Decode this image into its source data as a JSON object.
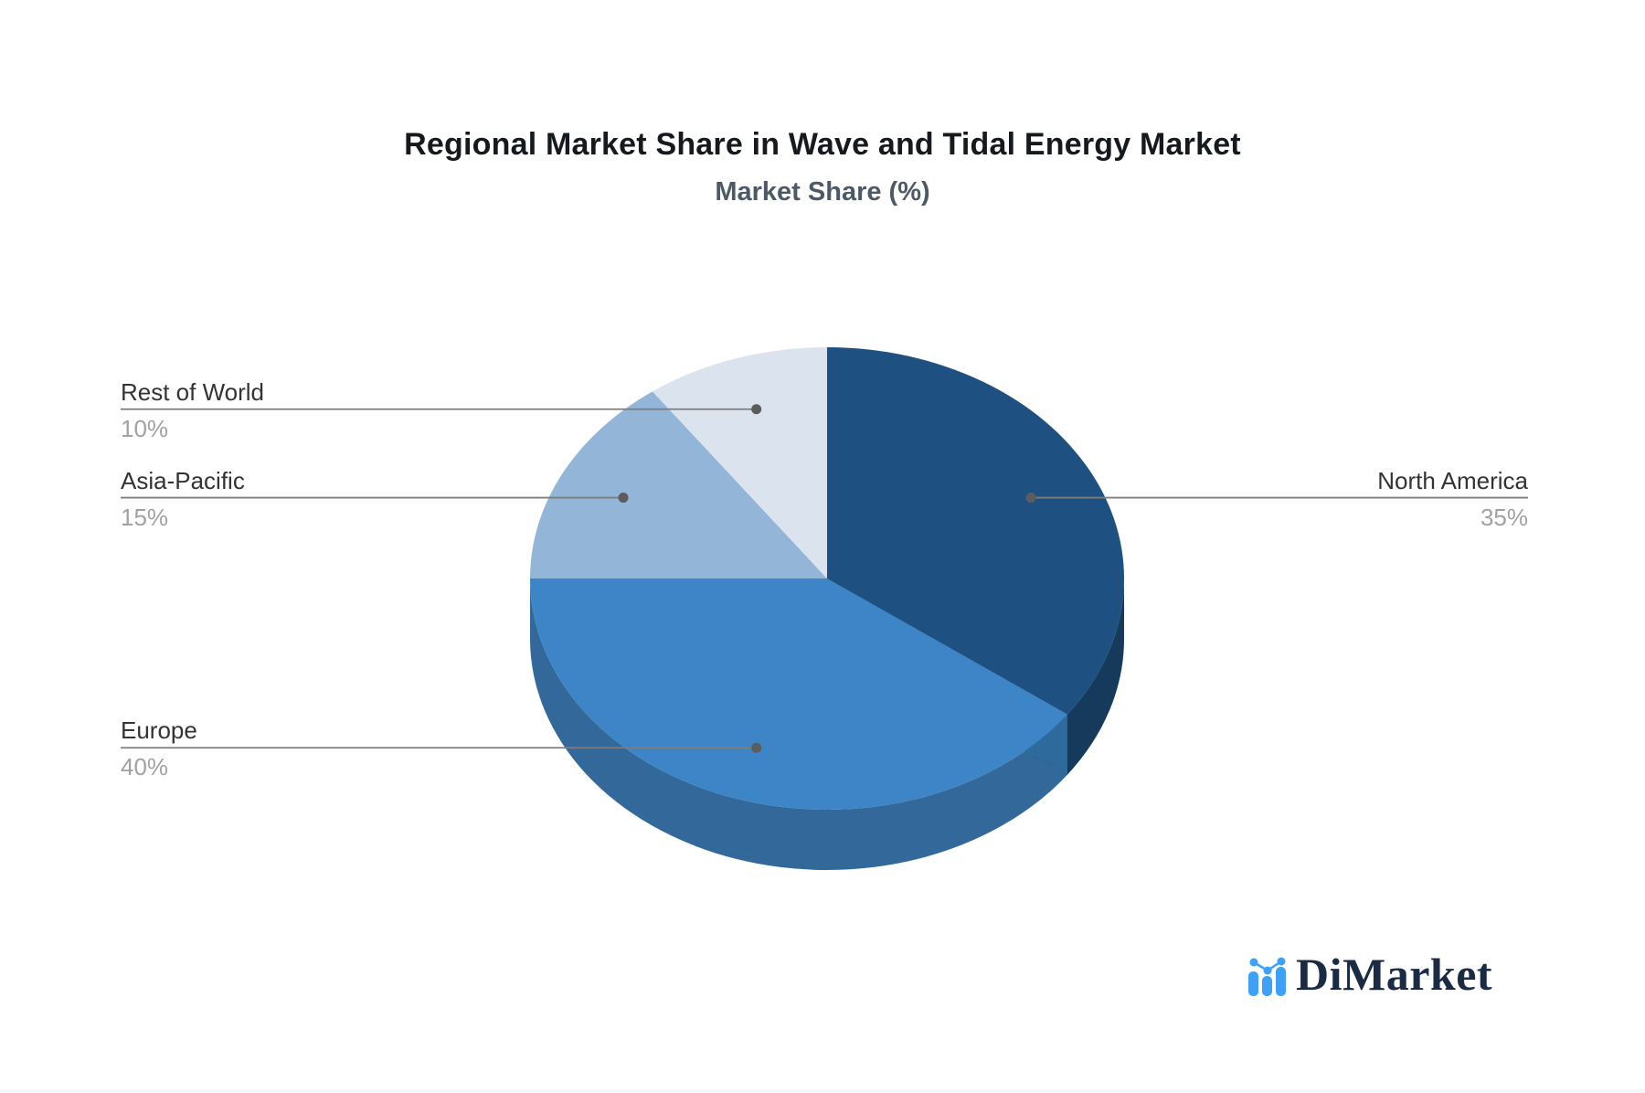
{
  "page": {
    "background": "#ffffff"
  },
  "chart_data": {
    "type": "pie",
    "title": "Regional Market Share in Wave and Tidal Energy Market",
    "subtitle": "Market Share (%)",
    "unit": "%",
    "total": 100,
    "start_angle": "12-o-clock",
    "direction": "clockwise",
    "style_3d": true,
    "legend_position": "none (leader-line labels)",
    "segments": [
      {
        "label": "North America",
        "value": 35,
        "display_value": "35%",
        "color": "#1e5182",
        "side_color": "#163a5c",
        "label_side": "right"
      },
      {
        "label": "Europe",
        "value": 40,
        "display_value": "40%",
        "color": "#3d85c6",
        "side_color": "#33689a",
        "cut_face_color": "#2f6a9d",
        "label_side": "left"
      },
      {
        "label": "Asia-Pacific",
        "value": 15,
        "display_value": "15%",
        "color": "#93b5d8",
        "side_color": "#7fa5cc",
        "label_side": "left"
      },
      {
        "label": "Rest of World",
        "value": 10,
        "display_value": "10%",
        "color": "#dbe3ef",
        "side_color": "#c3cfe0",
        "label_side": "left"
      }
    ]
  },
  "logo": {
    "text": "DiMarket",
    "icon": "bar-line-chart-icon",
    "icon_color": "#3fa1f5",
    "text_color": "#1c2b44"
  },
  "style": {
    "title_color": "#16191e",
    "subtitle_color": "#4d5966",
    "label_color": "#333333",
    "value_color": "#a1a1a1",
    "leader_line_color": "#7d7d7d",
    "leader_dot_color": "#5c5c5c"
  }
}
